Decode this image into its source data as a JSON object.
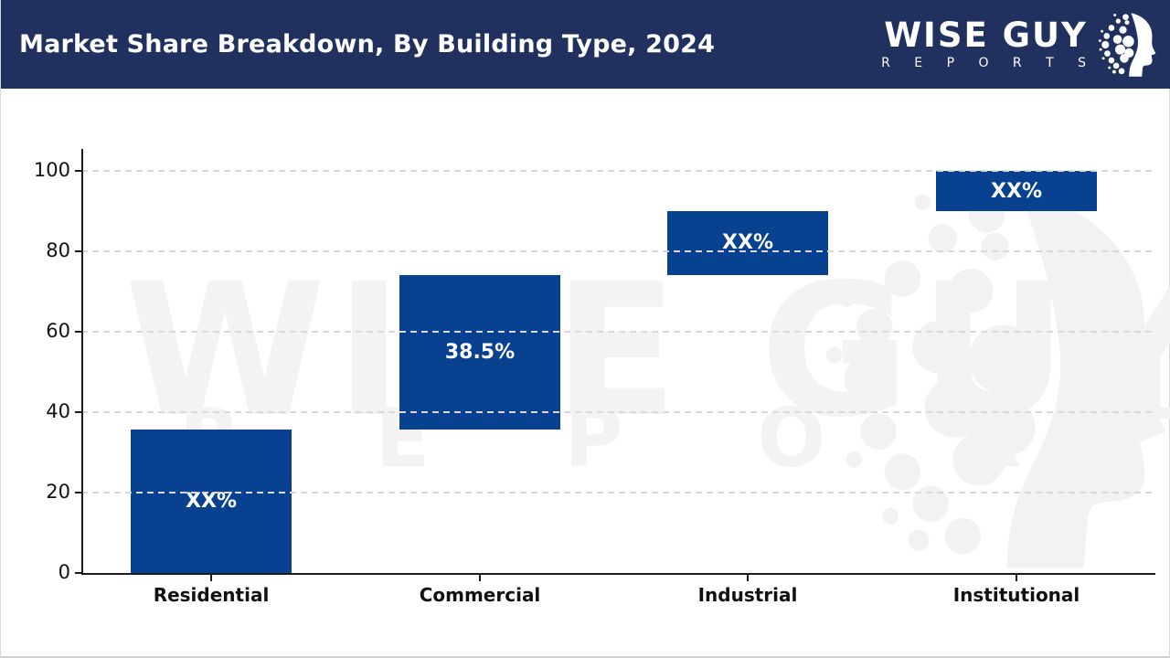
{
  "header": {
    "title": "Market Share Breakdown, By Building Type, 2024",
    "bg_color": "#20305f",
    "logo": {
      "line1": "WISE GUY",
      "line2": "R E P O R T S"
    }
  },
  "watermark": {
    "line1": "WISE GUY",
    "line2": "R E P O R T S"
  },
  "chart_data": {
    "type": "bar",
    "subtype": "waterfall",
    "title": "Market Share Breakdown, By Building Type, 2024",
    "xlabel": "",
    "ylabel": "",
    "categories": [
      "Residential",
      "Commercial",
      "Industrial",
      "Institutional"
    ],
    "segments": [
      {
        "category": "Residential",
        "start": 0,
        "end": 35.7,
        "value": 35.7,
        "label": "XX%"
      },
      {
        "category": "Commercial",
        "start": 35.7,
        "end": 74.2,
        "value": 38.5,
        "label": "38.5%"
      },
      {
        "category": "Industrial",
        "start": 74.2,
        "end": 90.0,
        "value": 15.8,
        "label": "XX%"
      },
      {
        "category": "Institutional",
        "start": 90.0,
        "end": 100.0,
        "value": 10.0,
        "label": "XX%"
      }
    ],
    "yticks": [
      0,
      20,
      40,
      60,
      80,
      100
    ],
    "ylim": [
      0,
      105
    ],
    "grid": "horizontal-dashed",
    "legend": "none",
    "bar_color": "#08418f",
    "bar_label_color": "#ffffff",
    "gridline_color": "#d9d9d9",
    "axis_color": "#1a1a1a"
  }
}
